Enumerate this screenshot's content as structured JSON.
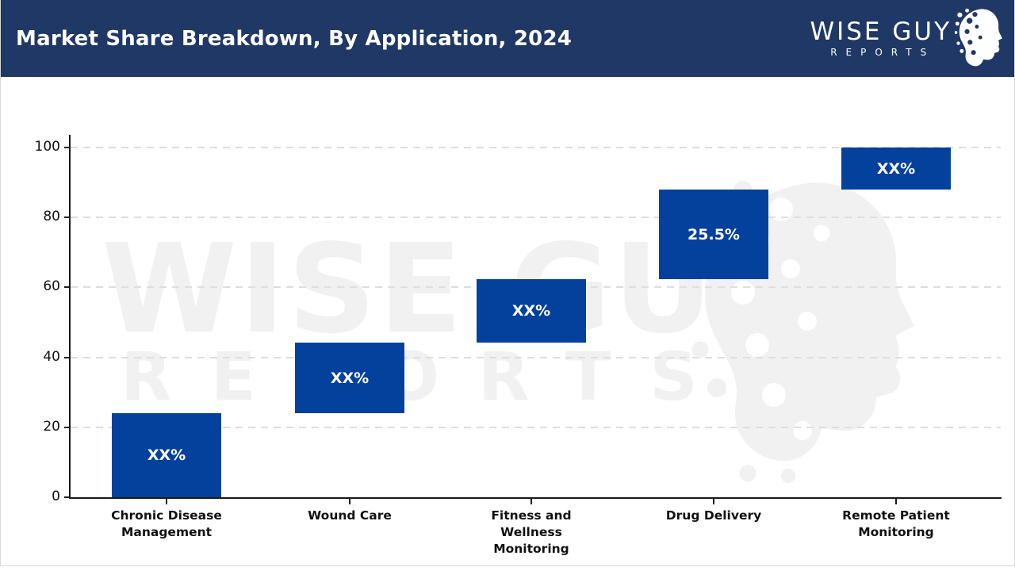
{
  "header": {
    "title": "Market Share Breakdown, By Application, 2024",
    "logo": {
      "line1": "WISE GUY",
      "line2": "REPORTS"
    }
  },
  "watermark": {
    "line1": "WISE GUY",
    "line2": "REPORTS"
  },
  "colors": {
    "header_bg": "#1f3865",
    "bar": "#04419c",
    "bar_label": "#ffffff",
    "watermark": "#f1f1f1",
    "gridline": "#dedede",
    "axis": "#1a1a1a"
  },
  "chart_data": {
    "type": "bar",
    "subtype": "waterfall",
    "title": "Market Share Breakdown, By Application, 2024",
    "categories": [
      "Chronic Disease\nManagement",
      "Wound Care",
      "Fitness and\nWellness\nMonitoring",
      "Drug Delivery",
      "Remote Patient\nMonitoring"
    ],
    "segments": [
      {
        "category": "Chronic Disease Management",
        "start": 0,
        "end": 24,
        "value": 24,
        "label": "XX%"
      },
      {
        "category": "Wound Care",
        "start": 24,
        "end": 44.2,
        "value": 20.2,
        "label": "XX%"
      },
      {
        "category": "Fitness and Wellness Monitoring",
        "start": 44.2,
        "end": 62.4,
        "value": 18.2,
        "label": "XX%"
      },
      {
        "category": "Drug Delivery",
        "start": 62.4,
        "end": 87.9,
        "value": 25.5,
        "label": "25.5%"
      },
      {
        "category": "Remote Patient Monitoring",
        "start": 87.9,
        "end": 100,
        "value": 12.1,
        "label": "XX%"
      }
    ],
    "ylim": [
      0,
      100
    ],
    "yticks": [
      0,
      20,
      40,
      60,
      80,
      100
    ],
    "ytick_labels": [
      "0",
      "20",
      "40",
      "60",
      "80",
      "100"
    ],
    "xlabel": "",
    "ylabel": "",
    "grid": "horizontal-dashed",
    "legend": "none"
  }
}
